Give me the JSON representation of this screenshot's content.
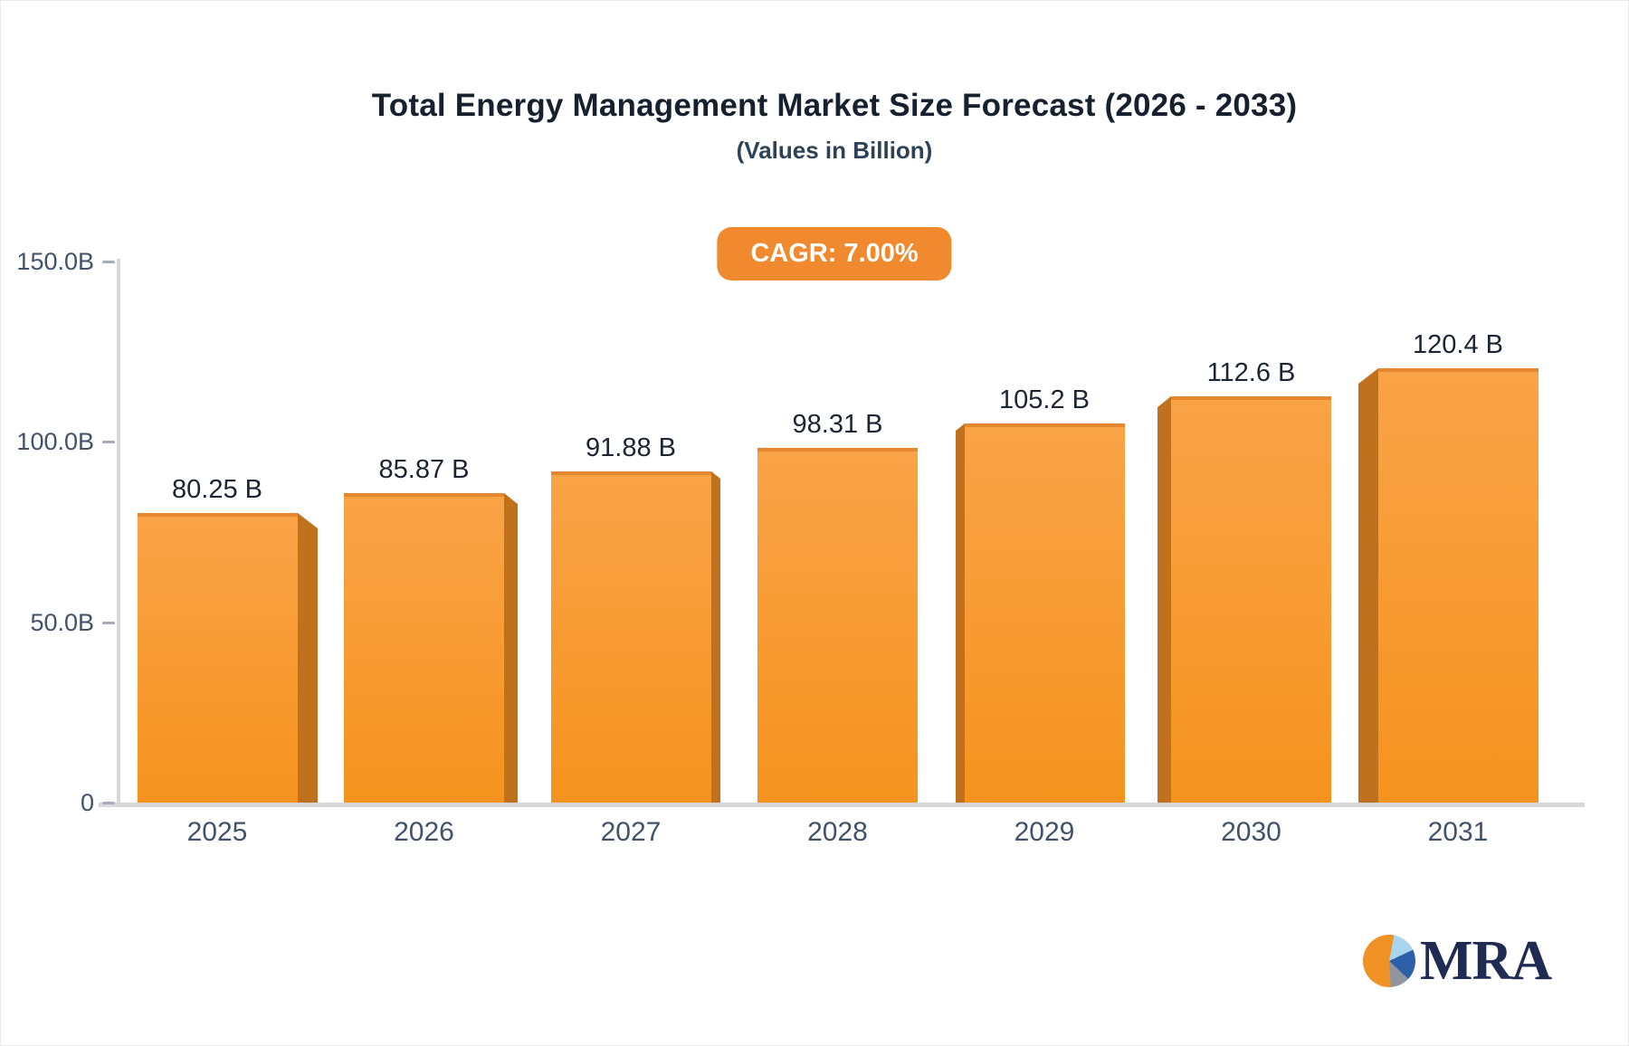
{
  "header": {
    "title": "Total Energy Management Market Size Forecast (2026 - 2033)",
    "subtitle": "(Values in Billion)",
    "cagr_badge": "CAGR: 7.00%"
  },
  "chart_data": {
    "type": "bar",
    "title": "Total Energy Management Market Size Forecast (2026 - 2033)",
    "subtitle": "(Values in Billion)",
    "annotation": "CAGR: 7.00%",
    "categories": [
      "2025",
      "2026",
      "2027",
      "2028",
      "2029",
      "2030",
      "2031"
    ],
    "values": [
      80.25,
      85.87,
      91.88,
      98.31,
      105.2,
      112.6,
      120.4
    ],
    "value_labels": [
      "80.25 B",
      "85.87 B",
      "91.88 B",
      "98.31 B",
      "105.2 B",
      "112.6 B",
      "120.4 B"
    ],
    "unit": "Billion",
    "xlabel": "",
    "ylabel": "",
    "ylim": [
      0,
      150
    ],
    "yticks": [
      {
        "value": 150,
        "label": "150.0B"
      },
      {
        "value": 100,
        "label": "100.0B"
      },
      {
        "value": 50,
        "label": "50.0B"
      },
      {
        "value": 0,
        "label": "0"
      }
    ],
    "grid": false,
    "legend": false,
    "bar_style": "3d-perspective",
    "colors": {
      "bar_front_top": "#f9a347",
      "bar_front_bottom": "#f6931f",
      "bar_top_edge": "#e5872e",
      "bar_side": "#bf711e",
      "axis_line": "#d7d8dc",
      "tick": "#a7adb8",
      "axis_text": "#42526b",
      "value_text": "#1c2533",
      "badge_bg": "#f1892f",
      "badge_text": "#ffffff"
    }
  },
  "branding": {
    "logo_text": "MRA",
    "logo_icon": "pie-chart-icon",
    "logo_text_color": "#1f2b52",
    "pie_colors": {
      "orange": "#f09125",
      "light_blue": "#a9d5ef",
      "dark_blue": "#2d5fa8",
      "gray": "#8f96a0"
    }
  }
}
